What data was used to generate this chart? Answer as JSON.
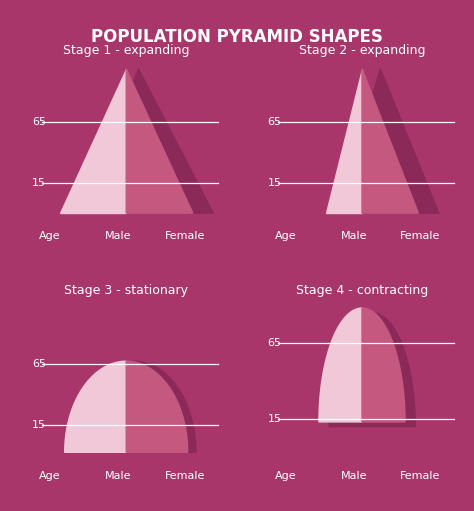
{
  "title": "POPULATION PYRAMID SHAPES",
  "bg_color": "#a8366a",
  "shadow_color": "#8b2a58",
  "light_color": "#f0c8d8",
  "dark_color": "#c4587e",
  "white_color": "#ffffff",
  "stages": [
    {
      "title": "Stage 1 - expanding",
      "shape": "triangle_wide"
    },
    {
      "title": "Stage 2 - expanding",
      "shape": "triangle_narrow"
    },
    {
      "title": "Stage 3 - stationary",
      "shape": "bell"
    },
    {
      "title": "Stage 4 - contracting",
      "shape": "egg"
    }
  ],
  "title_fontsize": 12,
  "subtitle_fontsize": 9,
  "label_fontsize": 8,
  "age_fontsize": 8
}
